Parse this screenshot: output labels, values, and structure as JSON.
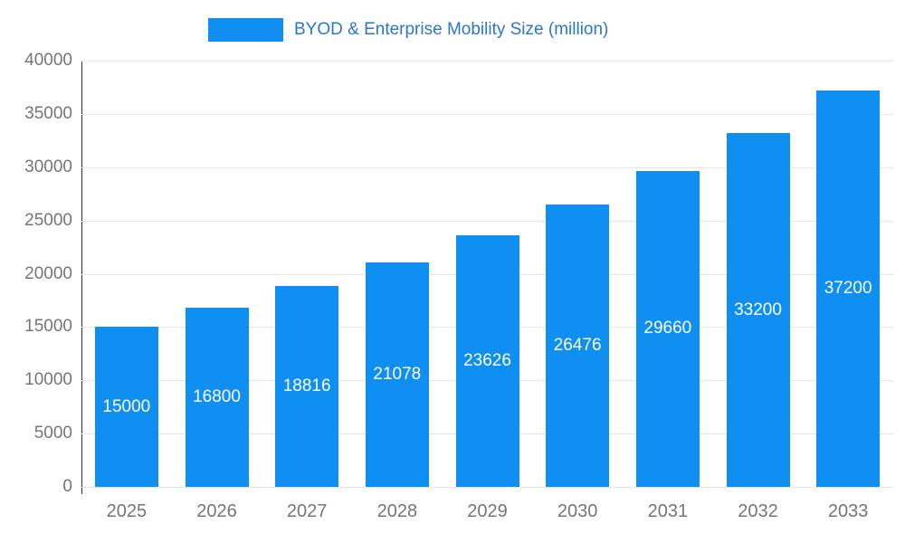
{
  "chart_data": {
    "type": "bar",
    "title": "",
    "categories": [
      "2025",
      "2026",
      "2027",
      "2028",
      "2029",
      "2030",
      "2031",
      "2032",
      "2033"
    ],
    "series": [
      {
        "name": "BYOD & Enterprise Mobility Size (million)",
        "values": [
          15000,
          16800,
          18816,
          21078,
          23626,
          26476,
          29660,
          33200,
          37200
        ]
      }
    ],
    "xlabel": "",
    "ylabel": "",
    "ylim": [
      0,
      40000
    ],
    "yticks": [
      0,
      5000,
      10000,
      15000,
      20000,
      25000,
      30000,
      35000,
      40000
    ],
    "grid": true,
    "legend_position": "top",
    "colors": {
      "bar": "#0f8ff2",
      "bar_value_label": "#ffffff",
      "legend_text": "#2a77c9",
      "axis_tick_text": "#757575",
      "gridline": "#e6e6e6",
      "axis_line": "#333333",
      "background": "#ffffff"
    }
  }
}
